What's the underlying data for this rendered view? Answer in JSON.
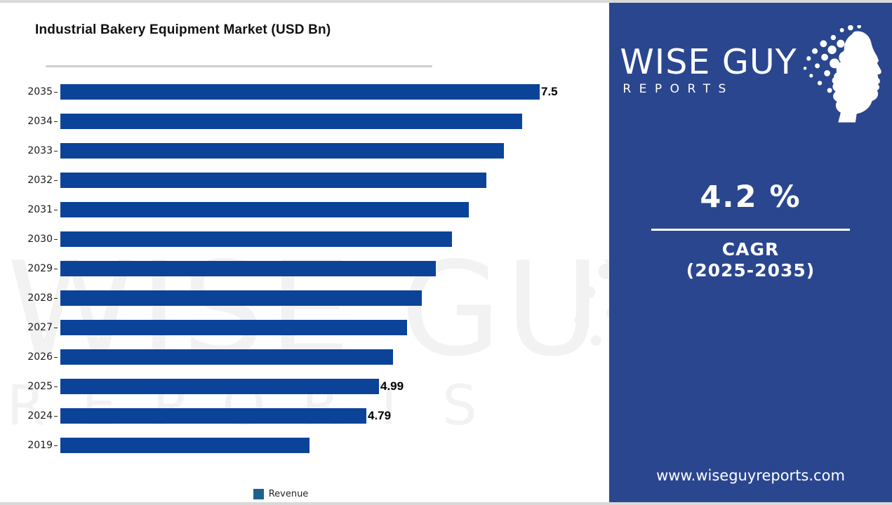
{
  "chart": {
    "title": "Industrial Bakery Equipment Market (USD Bn)"
  },
  "chart_data": {
    "type": "bar",
    "orientation": "horizontal",
    "title": "Industrial Bakery Equipment Market (USD Bn)",
    "categories": [
      "2035",
      "2034",
      "2033",
      "2032",
      "2031",
      "2030",
      "2029",
      "2028",
      "2027",
      "2026",
      "2025",
      "2024",
      "2019"
    ],
    "values": [
      7.5,
      7.23,
      6.94,
      6.66,
      6.39,
      6.13,
      5.88,
      5.65,
      5.42,
      5.2,
      4.99,
      4.79,
      3.9
    ],
    "bar_labels": {
      "2035": "7.5",
      "2025": "4.99",
      "2024": "4.79"
    },
    "xlim": [
      0,
      7.9
    ],
    "grid": false,
    "legend_position": "bottom-center",
    "legend": [
      {
        "label": "Revenue",
        "color": "#1f608f"
      }
    ],
    "bar_color": "#0b4399"
  },
  "watermark": {
    "line1": "WISE GUY",
    "line2": "REPORTS"
  },
  "sidebar": {
    "logo_line1": "WISE GUY",
    "logo_line2": "REPORTS",
    "cagr_value": "4.2 %",
    "cagr_label": "CAGR",
    "cagr_range": "(2025-2035)",
    "website": "www.wiseguyreports.com"
  },
  "colors": {
    "bar": "#0b4399",
    "side_panel": "#2a468f",
    "legend_marker": "#1f608f",
    "edge_strip": "#d9d9d9"
  }
}
